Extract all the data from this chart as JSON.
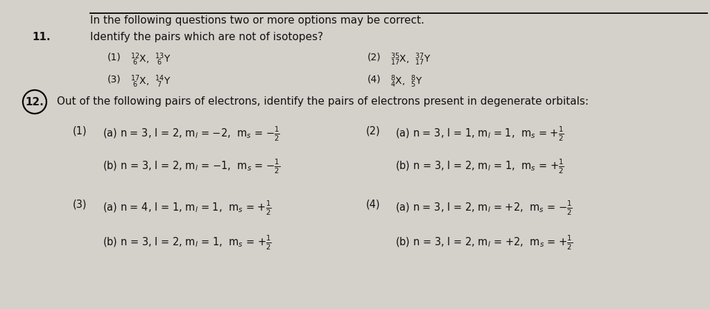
{
  "bg_color": "#d4d0ca",
  "header_line": "In the following questions two or more options may be correct.",
  "q11_label": "11.",
  "q11_text": "Identify the pairs which are not of isotopes?",
  "q12_text": "Out of the following pairs of electrons, identify the pairs of electrons present in degenerate orbitals:",
  "font_color": "#111111",
  "fs_main": 11.0,
  "fs_small": 10.0,
  "fs_pair": 10.5
}
